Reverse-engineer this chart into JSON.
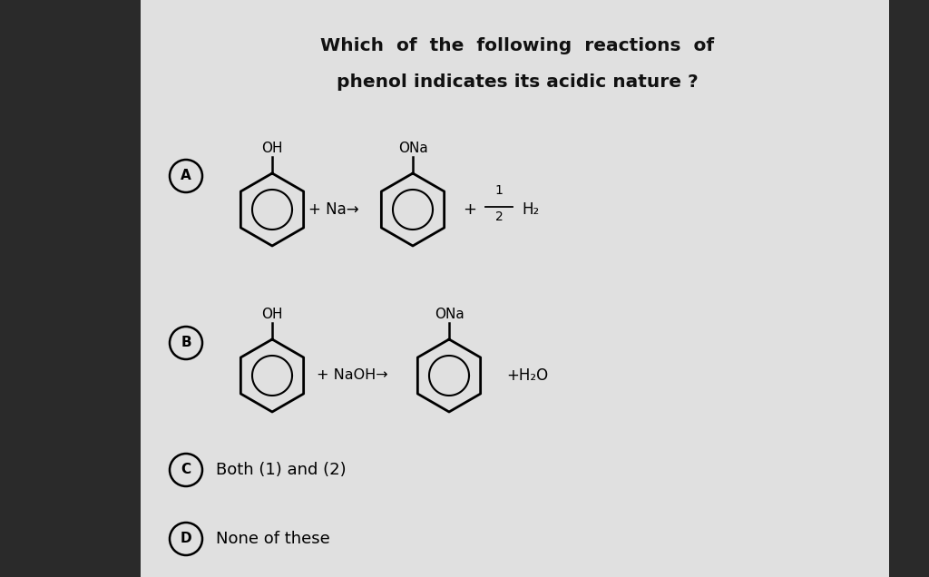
{
  "title_line1": "Which  of  the  following  reactions  of",
  "title_line2": "phenol indicates its acidic nature ?",
  "text_color": "#111111",
  "reaction_A_left_label": "OH",
  "reaction_A_reagent": "+ Na→",
  "reaction_A_right_label": "ONa",
  "reaction_B_left_label": "OH",
  "reaction_B_reagent": "+ NaOH→",
  "reaction_B_right_label": "ONa",
  "reaction_B_product": "+H₂O",
  "option_C_text": "Both (1) and (2)",
  "option_D_text": "None of these",
  "left_panel_color": "#2a2a2a",
  "right_panel_color": "#2a2a2a",
  "card_color": "#e0e0e0",
  "fig_bg": "#666666"
}
